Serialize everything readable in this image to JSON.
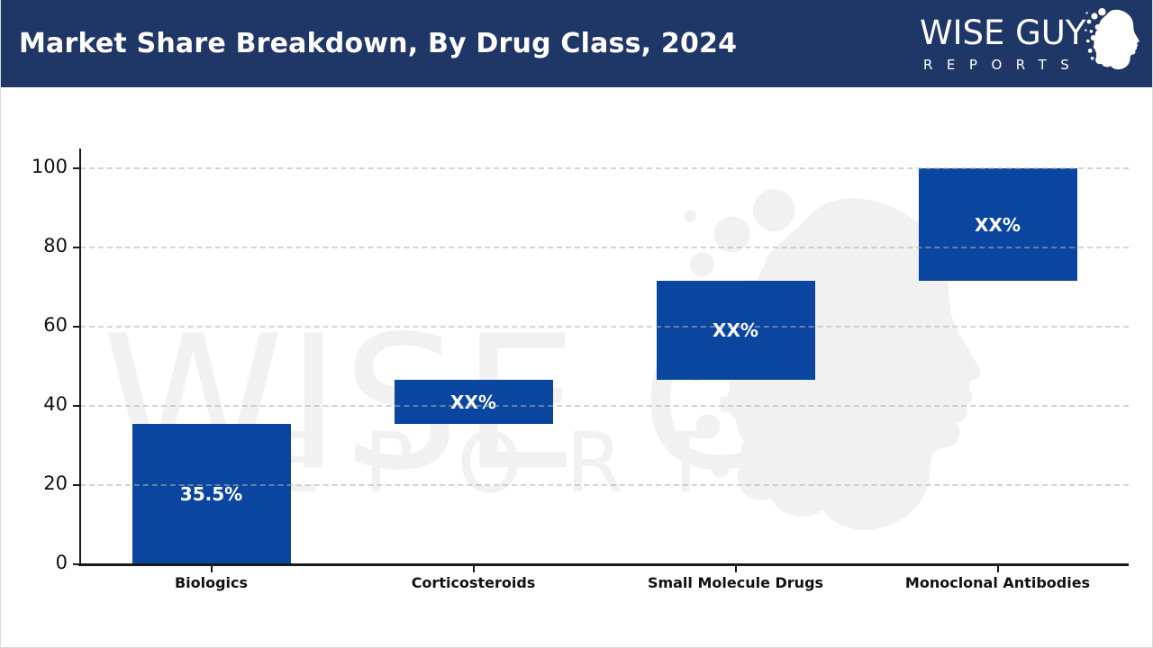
{
  "header": {
    "title": "Market Share Breakdown, By Drug Class, 2024",
    "bg_color": "#1f3767"
  },
  "logo": {
    "wordmark": "WISE GUY",
    "subtext": "REPORTS"
  },
  "watermark": {
    "wordmark": "WISE GU",
    "subtext": "REPORTS"
  },
  "chart_data": {
    "type": "bar",
    "subtype": "waterfall",
    "title": "Market Share Breakdown, By Drug Class, 2024",
    "xlabel": "",
    "ylabel": "",
    "categories": [
      "Biologics",
      "Corticosteroids",
      "Small Molecule Drugs",
      "Monoclonal Antibodies"
    ],
    "segments": [
      {
        "category": "Biologics",
        "start": 0,
        "end": 35.5,
        "label": "35.5%"
      },
      {
        "category": "Corticosteroids",
        "start": 35.5,
        "end": 46.5,
        "label": "XX%"
      },
      {
        "category": "Small Molecule Drugs",
        "start": 46.5,
        "end": 71.5,
        "label": "XX%"
      },
      {
        "category": "Monoclonal Antibodies",
        "start": 71.5,
        "end": 100,
        "label": "XX%"
      }
    ],
    "yticks": [
      0,
      20,
      40,
      60,
      80,
      100
    ],
    "ylim": [
      0,
      105
    ],
    "grid": "horizontal-dashed",
    "legend": "none",
    "bar_color": "#0a45a0",
    "colors": {
      "axis": "#1a1a1a",
      "grid": "#d9d9d9",
      "tick_label": "#111111",
      "bar_label": "#ffffff",
      "watermark": "#f1f1f1",
      "header_bg": "#1f3767"
    }
  }
}
